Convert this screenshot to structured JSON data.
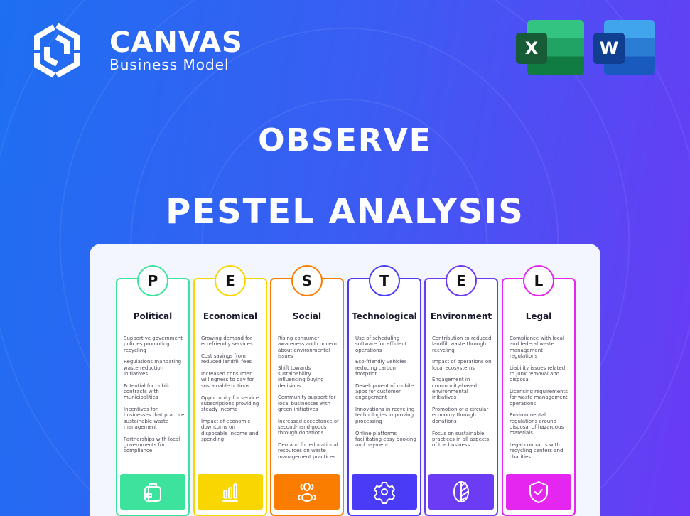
{
  "brand": {
    "name": "CANVAS",
    "sub": "Business Model"
  },
  "apps": [
    {
      "name": "Excel",
      "letter": "X",
      "color": "#1d6f42"
    },
    {
      "name": "Word",
      "letter": "W",
      "color": "#185abd"
    }
  ],
  "heading": {
    "line1": "OBSERVE",
    "line2": "PESTEL ANALYSIS"
  },
  "columns": [
    {
      "letter": "P",
      "title": "Political",
      "color": "#3de39c",
      "icon": "briefcase-icon",
      "items": [
        "Supportive government policies promoting recycling",
        "Regulations mandating waste reduction initiatives",
        "Potential for public contracts with municipalities",
        "Incentives for businesses that practice sustainable waste management",
        "Partnerships with local governments for compliance"
      ]
    },
    {
      "letter": "E",
      "title": "Economical",
      "color": "#f9d600",
      "icon": "bar-chart-icon",
      "items": [
        "Growing demand for eco-friendly services",
        "Cost savings from reduced landfill fees",
        "Increased consumer willingness to pay for sustainable options",
        "Opportunity for service subscriptions providing steady income",
        "Impact of economic downturns on disposable income and spending"
      ]
    },
    {
      "letter": "S",
      "title": "Social",
      "color": "#fb7d00",
      "icon": "people-icon",
      "items": [
        "Rising consumer awareness and concern about environmental issues",
        "Shift towards sustainability influencing buying decisions",
        "Community support for local businesses with green initiatives",
        "Increased acceptance of second-hand goods through donations",
        "Demand for educational resources on waste management practices"
      ]
    },
    {
      "letter": "T",
      "title": "Technological",
      "color": "#4a3cf6",
      "icon": "gear-icon",
      "items": [
        "Use of scheduling software for efficient operations",
        "Eco-friendly vehicles reducing carbon footprint",
        "Development of mobile apps for customer engagement",
        "Innovations in recycling technologies improving processing",
        "Online platforms facilitating easy booking and payment"
      ]
    },
    {
      "letter": "E",
      "title": "Environment",
      "color": "#6c3cf5",
      "icon": "leaf-icon",
      "items": [
        "Contribution to reduced landfill waste through recycling",
        "Impact of operations on local ecosystems",
        "Engagement in community-based environmental initiatives",
        "Promotion of a circular economy through donations",
        "Focus on sustainable practices in all aspects of the business"
      ]
    },
    {
      "letter": "L",
      "title": "Legal",
      "color": "#e525f0",
      "icon": "shield-check-icon",
      "items": [
        "Compliance with local and federal waste management regulations",
        "Liability issues related to junk removal and disposal",
        "Licensing requirements for waste management operations",
        "Environmental regulations around disposal of hazardous materials",
        "Legal contracts with recycling centers and charities"
      ]
    }
  ]
}
